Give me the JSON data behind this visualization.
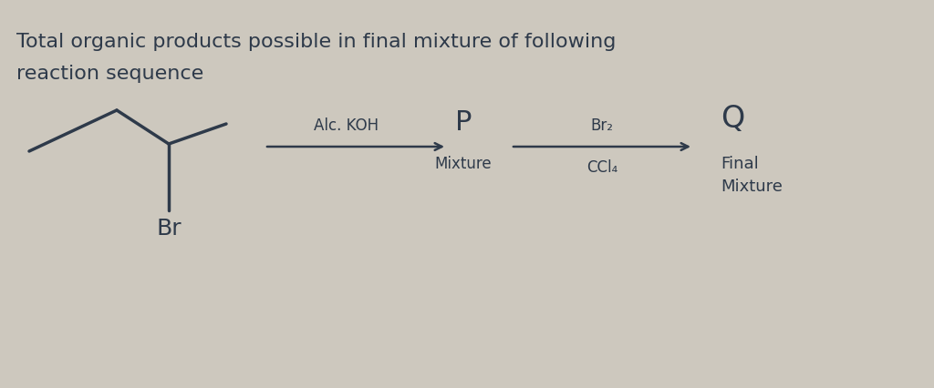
{
  "bg_color": "#cdc8be",
  "title_line1": "Total organic products possible in final mixture of following",
  "title_line2": "reaction sequence",
  "text_color": "#2e3a4a",
  "arrow_color": "#2e3a4a",
  "molecule_label": "Br",
  "reagent1_above": "Alc. KOH",
  "product1": "P",
  "product1_sub": "Mixture",
  "reagent2_above": "Br₂",
  "reagent2_below": "CCl₄",
  "product2": "Q",
  "product2_sub1": "Final",
  "product2_sub2": "Mixture",
  "title_fontsize": 16,
  "label_fontsize": 16,
  "small_fontsize": 12,
  "lw": 2.0
}
